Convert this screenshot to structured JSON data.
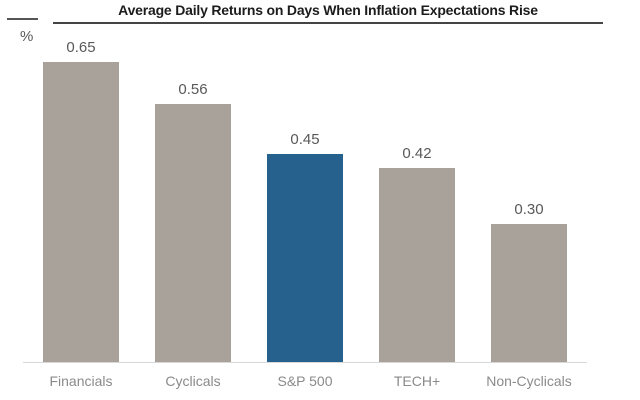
{
  "chart_data": {
    "type": "bar",
    "title": "Average Daily Returns on Days When Inflation Expectations Rise",
    "ylabel": "%",
    "xlabel": "",
    "categories": [
      "Financials",
      "Cyclicals",
      "S&P 500",
      "TECH+",
      "Non-Cyclicals"
    ],
    "values": [
      0.65,
      0.56,
      0.45,
      0.42,
      0.3
    ],
    "value_labels": [
      "0.65",
      "0.56",
      "0.45",
      "0.42",
      "0.30"
    ],
    "ylim": [
      0,
      0.72
    ],
    "grid": false,
    "legend": "none",
    "highlight_index": 2,
    "highlight_category": "S&P 500",
    "colors": {
      "bar_default": "#a9a29b",
      "bar_highlight": "#26618e",
      "axis_line": "#d8d8d8",
      "value_label": "#595959",
      "category_label": "#8a8a8a",
      "title_text": "#1c1c1c",
      "title_rule": "#444444"
    }
  }
}
